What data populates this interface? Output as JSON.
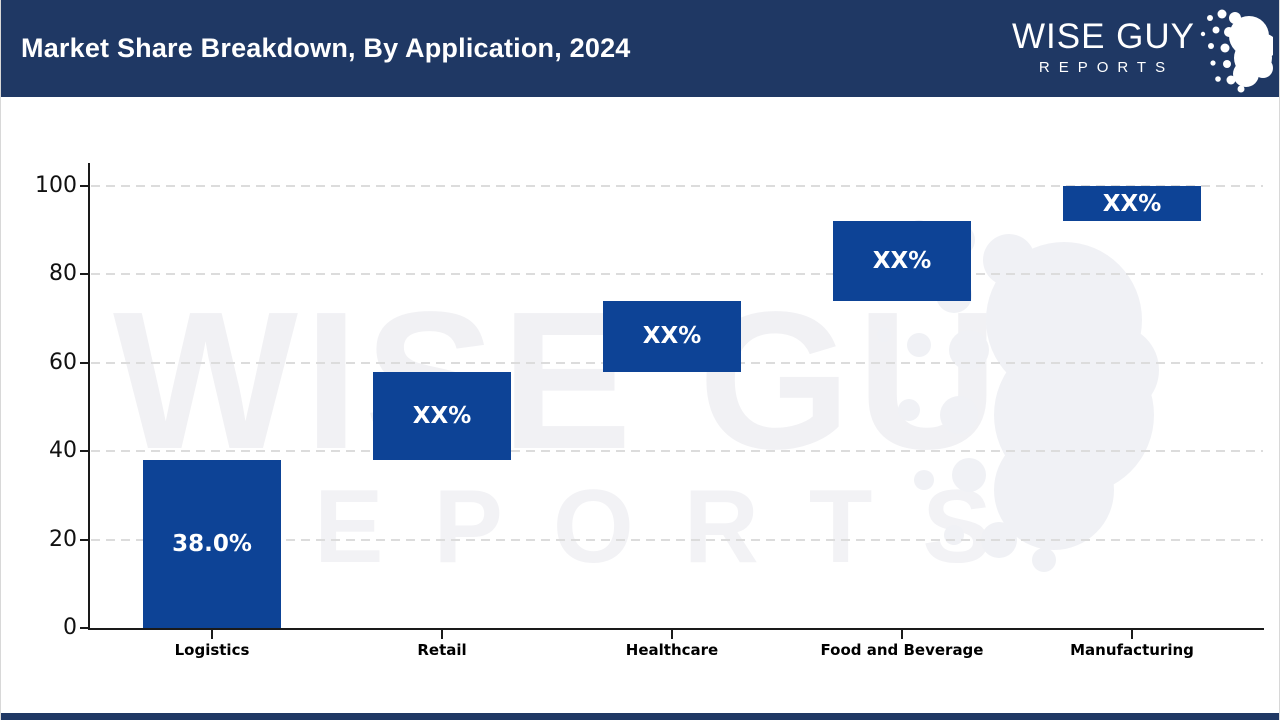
{
  "header": {
    "title": "Market Share Breakdown, By Application, 2024",
    "bg_color": "#1f3864",
    "logo": {
      "line1": "WISE GUY",
      "line2": "REPORTS"
    }
  },
  "watermark": {
    "line1": "WISE GUY",
    "line2": "REPORTS"
  },
  "footer": {
    "bg_color": "#1f3864"
  },
  "chart_data": {
    "type": "bar",
    "subtype": "waterfall",
    "title": "Market Share Breakdown, By Application, 2024",
    "categories": [
      "Logistics",
      "Retail",
      "Healthcare",
      "Food and Beverage",
      "Manufacturing"
    ],
    "segments": [
      {
        "category": "Logistics",
        "start": 0,
        "end": 38,
        "label": "38.0%"
      },
      {
        "category": "Retail",
        "start": 38,
        "end": 58,
        "label": "XX%"
      },
      {
        "category": "Healthcare",
        "start": 58,
        "end": 74,
        "label": "XX%"
      },
      {
        "category": "Food and Beverage",
        "start": 74,
        "end": 92,
        "label": "XX%"
      },
      {
        "category": "Manufacturing",
        "start": 92,
        "end": 100,
        "label": "XX%"
      }
    ],
    "y_ticks": [
      0,
      20,
      40,
      60,
      80,
      100
    ],
    "ylim": [
      0,
      105
    ],
    "xlabel": "",
    "ylabel": "",
    "grid": "horizontal-dashed",
    "legend": "none",
    "bar_color": "#0d4396",
    "bar_label_color": "#ffffff",
    "axis_color": "#1a1a1a",
    "grid_color": "#dcdcdc"
  }
}
